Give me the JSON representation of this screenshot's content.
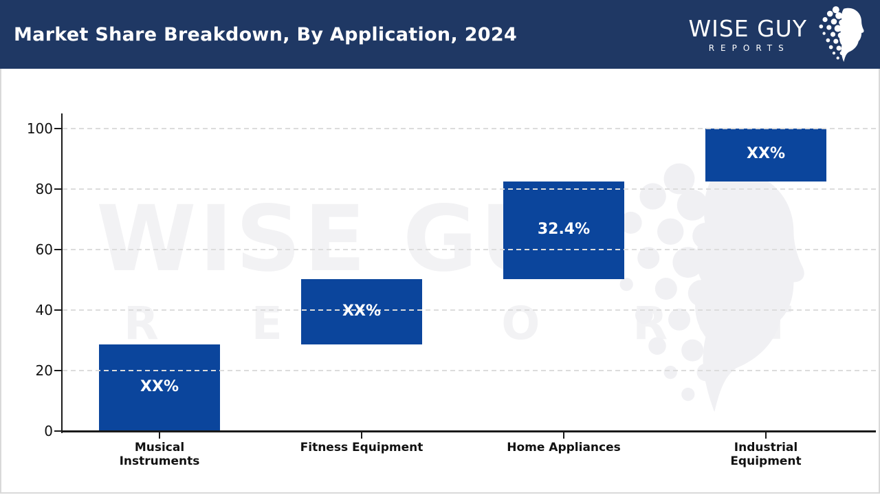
{
  "header": {
    "title": "Market Share Breakdown, By Application, 2024",
    "brand_name": "WISE GUY",
    "brand_sub": "REPORTS",
    "bg_color": "#1f3864"
  },
  "watermark": {
    "line1": "WISE GUY",
    "line2": "R E P O R T S"
  },
  "chart_data": {
    "type": "bar",
    "subtype": "waterfall",
    "title": "Market Share Breakdown, By Application, 2024",
    "categories": [
      "Musical Instruments",
      "Fitness Equipment",
      "Home Appliances",
      "Industrial Equipment"
    ],
    "tick_labels": [
      "Musical\nInstruments",
      "Fitness Equipment",
      "Home Appliances",
      "Industrial\nEquipment"
    ],
    "segments": [
      {
        "category": "Musical Instruments",
        "start": 0,
        "end": 28.6,
        "value": 28.6,
        "label": "XX%"
      },
      {
        "category": "Fitness Equipment",
        "start": 28.6,
        "end": 50.2,
        "value": 21.6,
        "label": "XX%"
      },
      {
        "category": "Home Appliances",
        "start": 50.2,
        "end": 82.6,
        "value": 32.4,
        "label": "32.4%"
      },
      {
        "category": "Industrial Equipment",
        "start": 82.6,
        "end": 100,
        "value": 17.4,
        "label": "XX%"
      }
    ],
    "xlabel": "",
    "ylabel": "",
    "yticks": [
      0,
      20,
      40,
      60,
      80,
      100
    ],
    "ylim": [
      0,
      105
    ],
    "grid": "horizontal-dashed",
    "grid_above_bars": true,
    "bar_color": "#0b459c",
    "bar_label_color": "#ffffff",
    "grid_color": "#dcdcdc",
    "axis_color": "#1a1a1a",
    "tick_label_color": "#111111"
  }
}
